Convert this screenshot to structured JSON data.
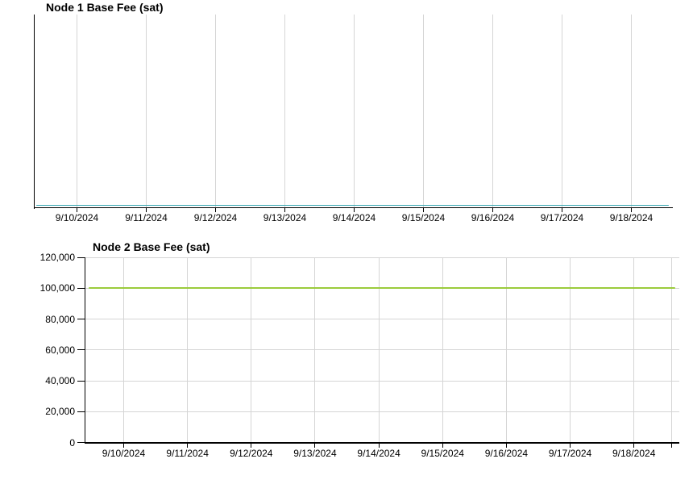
{
  "colors": {
    "grid": "#D5D5D5",
    "axis": "#000000",
    "text": "#000000",
    "node1_line": "#35A6B0",
    "node2_line": "#9BCB3C"
  },
  "chart_data": [
    {
      "type": "line",
      "title": "Node 1 Base Fee (sat)",
      "x": [
        "9/10/2024",
        "9/11/2024",
        "9/12/2024",
        "9/13/2024",
        "9/14/2024",
        "9/15/2024",
        "9/16/2024",
        "9/17/2024",
        "9/18/2024"
      ],
      "xlabel": "",
      "ylabel": "",
      "ytick_values": [],
      "ytick_labels": [],
      "grid": "vertical-only",
      "legend": "none",
      "series": [
        {
          "name": "Node 1 base fee",
          "color": "#35A6B0",
          "values": [
            0,
            0,
            0,
            0,
            0,
            0,
            0,
            0,
            0
          ]
        }
      ]
    },
    {
      "type": "line",
      "title": "Node 2 Base Fee (sat)",
      "x": [
        "9/10/2024",
        "9/11/2024",
        "9/12/2024",
        "9/13/2024",
        "9/14/2024",
        "9/15/2024",
        "9/16/2024",
        "9/17/2024",
        "9/18/2024"
      ],
      "xlabel": "",
      "ylabel": "",
      "ylim": [
        0,
        120000
      ],
      "ytick_values": [
        0,
        20000,
        40000,
        60000,
        80000,
        100000,
        120000
      ],
      "ytick_labels": [
        "0",
        "20,000",
        "40,000",
        "60,000",
        "80,000",
        "100,000",
        "120,000"
      ],
      "grid": "full",
      "legend": "none",
      "series": [
        {
          "name": "Node 2 base fee",
          "color": "#9BCB3C",
          "values": [
            100000,
            100000,
            100000,
            100000,
            100000,
            100000,
            100000,
            100000,
            100000
          ]
        }
      ]
    }
  ]
}
